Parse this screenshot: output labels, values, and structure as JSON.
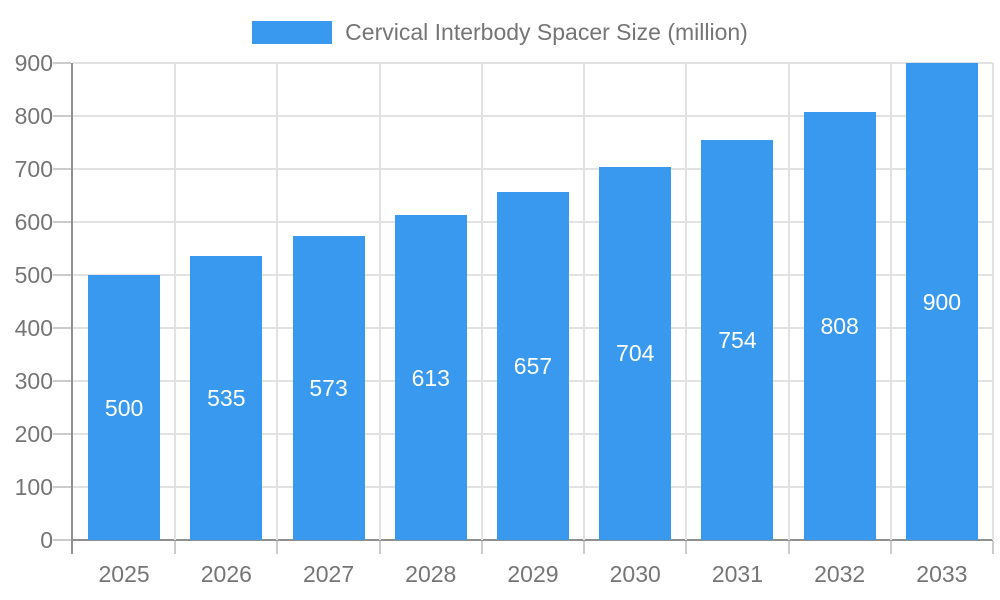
{
  "chart_data": {
    "type": "bar",
    "title": "Cervical Interbody Spacer Size (million)",
    "categories": [
      "2025",
      "2026",
      "2027",
      "2028",
      "2029",
      "2030",
      "2031",
      "2032",
      "2033"
    ],
    "values": [
      500,
      535,
      573,
      613,
      657,
      704,
      754,
      808,
      900
    ],
    "xlabel": "",
    "ylabel": "",
    "ylim": [
      0,
      900
    ],
    "ytick_interval": 100,
    "ytick_labels": [
      "0",
      "100",
      "200",
      "300",
      "400",
      "500",
      "600",
      "700",
      "800",
      "900"
    ],
    "grid": true,
    "legend_position": "top-center",
    "bar_labels_inside": true
  },
  "legend": {
    "label": "Cervical Interbody Spacer Size (million)"
  },
  "colors": {
    "bar": "#3899EE",
    "bar_label": "#ffffff",
    "gridline": "#e2e2e2",
    "axis_line": "#909090",
    "tick": "#cccccc",
    "axis_text": "#757575",
    "background": "#ffffff"
  }
}
